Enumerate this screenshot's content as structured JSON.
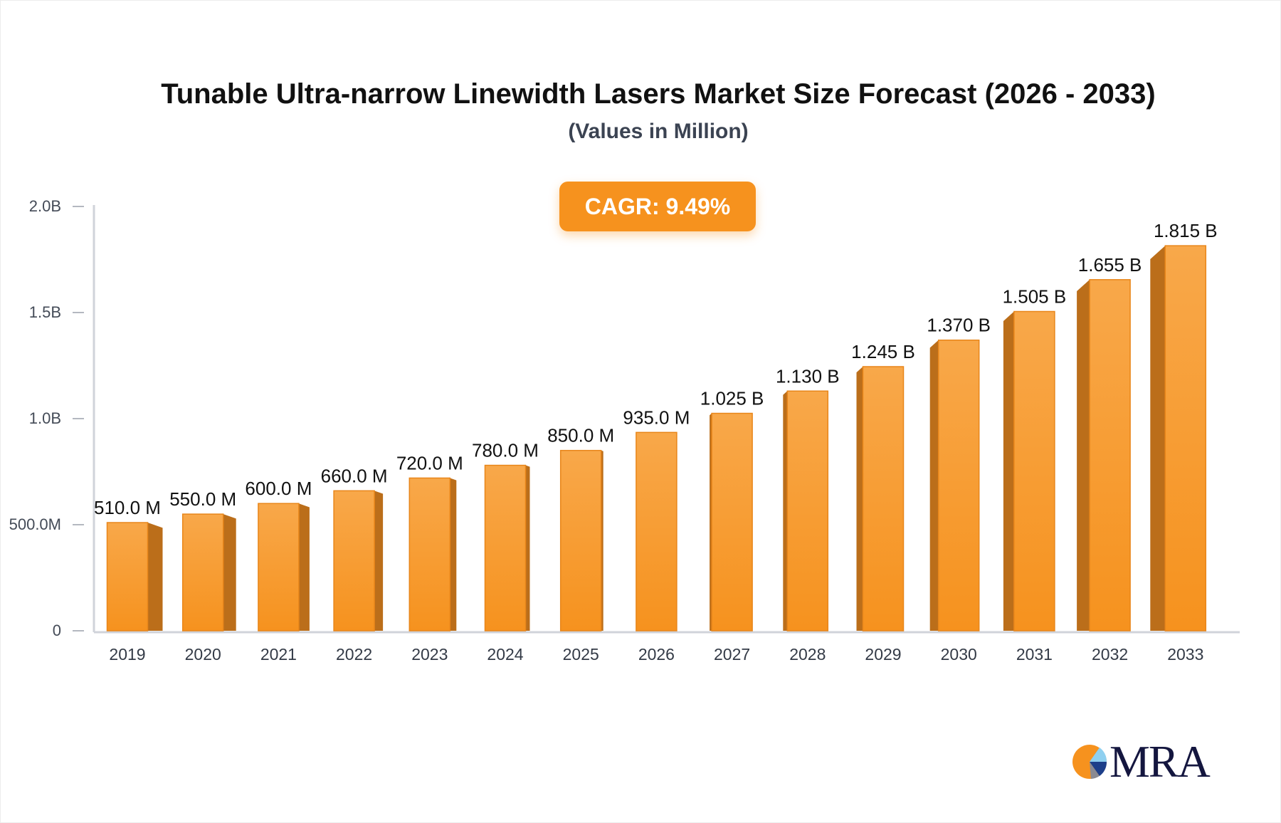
{
  "chart_data": {
    "type": "bar",
    "title": "Tunable Ultra-narrow Linewidth Lasers Market Size Forecast (2026 - 2033)",
    "subtitle": "(Values in Million)",
    "annotation": "CAGR: 9.49%",
    "categories": [
      "2019",
      "2020",
      "2021",
      "2022",
      "2023",
      "2024",
      "2025",
      "2026",
      "2027",
      "2028",
      "2029",
      "2030",
      "2031",
      "2032",
      "2033"
    ],
    "values": [
      510,
      550,
      600,
      660,
      720,
      780,
      850,
      935,
      1025,
      1130,
      1245,
      1370,
      1505,
      1655,
      1815
    ],
    "data_labels": [
      "510.0 M",
      "550.0 M",
      "600.0 M",
      "660.0 M",
      "720.0 M",
      "780.0 M",
      "850.0 M",
      "935.0 M",
      "1.025 B",
      "1.130 B",
      "1.245 B",
      "1.370 B",
      "1.505 B",
      "1.655 B",
      "1.815 B"
    ],
    "ylim": [
      0,
      2000
    ],
    "yticks": [
      0,
      500,
      1000,
      1500,
      2000
    ],
    "ytick_labels": [
      "0",
      "500.0M",
      "1.0B",
      "1.5B",
      "2.0B"
    ],
    "xlabel": "",
    "ylabel": "",
    "grid": false,
    "colors": {
      "bar_front": "#f6921e",
      "bar_top": "#f8a84a",
      "bar_side": "#bb6e1a",
      "axis": "#d0d3da",
      "badge": "#f6921e"
    }
  },
  "logo": {
    "text": "MRA"
  }
}
